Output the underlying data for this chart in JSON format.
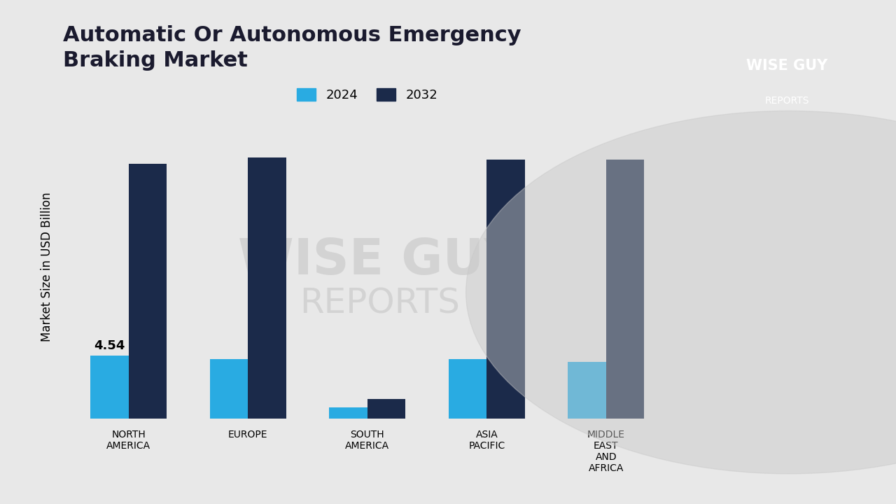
{
  "title": "Automatic Or Autonomous Emergency\nBraking Market",
  "ylabel": "Market Size in USD Billion",
  "categories": [
    "NORTH\nAMERICA",
    "EUROPE",
    "SOUTH\nAMERICA",
    "ASIA\nPACIFIC",
    "MIDDLE\nEAST\nAND\nAFRICA"
  ],
  "values_2024": [
    4.54,
    4.3,
    0.8,
    4.3,
    4.1
  ],
  "values_2032": [
    18.5,
    19.0,
    1.4,
    18.8,
    18.8
  ],
  "color_2024": "#29ABE2",
  "color_2032": "#1B2A4A",
  "annotation_value": "4.54",
  "annotation_bar": 0,
  "legend_labels": [
    "2024",
    "2032"
  ],
  "background_color": "#E8E8E8",
  "right_panel_color": "#1B2A4A",
  "bar_width": 0.32,
  "title_color": "#1a1a2e",
  "ylim": [
    0,
    22
  ],
  "logo_line1": "WISE GUY",
  "logo_line2": "REPORTS"
}
